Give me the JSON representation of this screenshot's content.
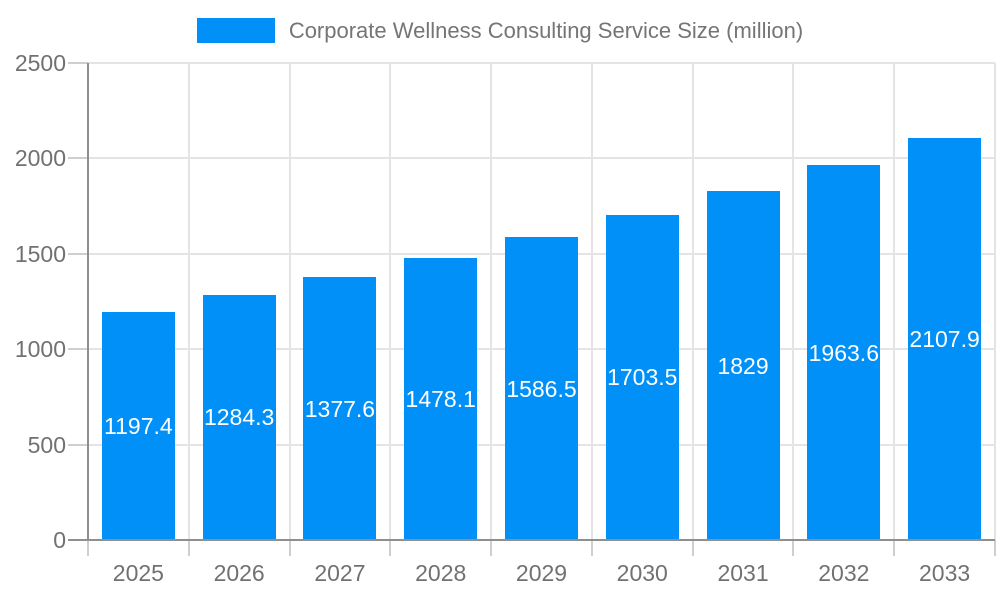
{
  "legend": {
    "swatch_color": "#0090f7",
    "label": "Corporate Wellness Consulting Service Size (million)"
  },
  "chart_data": {
    "type": "bar",
    "title": "Corporate Wellness Consulting Service Size (million)",
    "series_name": "Corporate Wellness Consulting Service Size (million)",
    "categories": [
      "2025",
      "2026",
      "2027",
      "2028",
      "2029",
      "2030",
      "2031",
      "2032",
      "2033"
    ],
    "values": [
      1197.4,
      1284.3,
      1377.6,
      1478.1,
      1586.5,
      1703.5,
      1829,
      1963.6,
      2107.9
    ],
    "value_labels": [
      "1197.4",
      "1284.3",
      "1377.6",
      "1478.1",
      "1586.5",
      "1703.5",
      "1829",
      "1963.6",
      "2107.9"
    ],
    "xlabel": "",
    "ylabel": "",
    "ylim": [
      0,
      2500
    ],
    "yticks": [
      0,
      500,
      1000,
      1500,
      2000,
      2500
    ],
    "grid": true,
    "legend_position": "top",
    "colors": {
      "bar": "#0090f7",
      "value_label_text": "#ffffff",
      "axis_text": "#717171",
      "title_text": "#757575",
      "grid_line": "#e4e4e4",
      "tick_line": "#cfcfcf",
      "axis_line": "#8f8f8f",
      "background": "#ffffff"
    }
  }
}
